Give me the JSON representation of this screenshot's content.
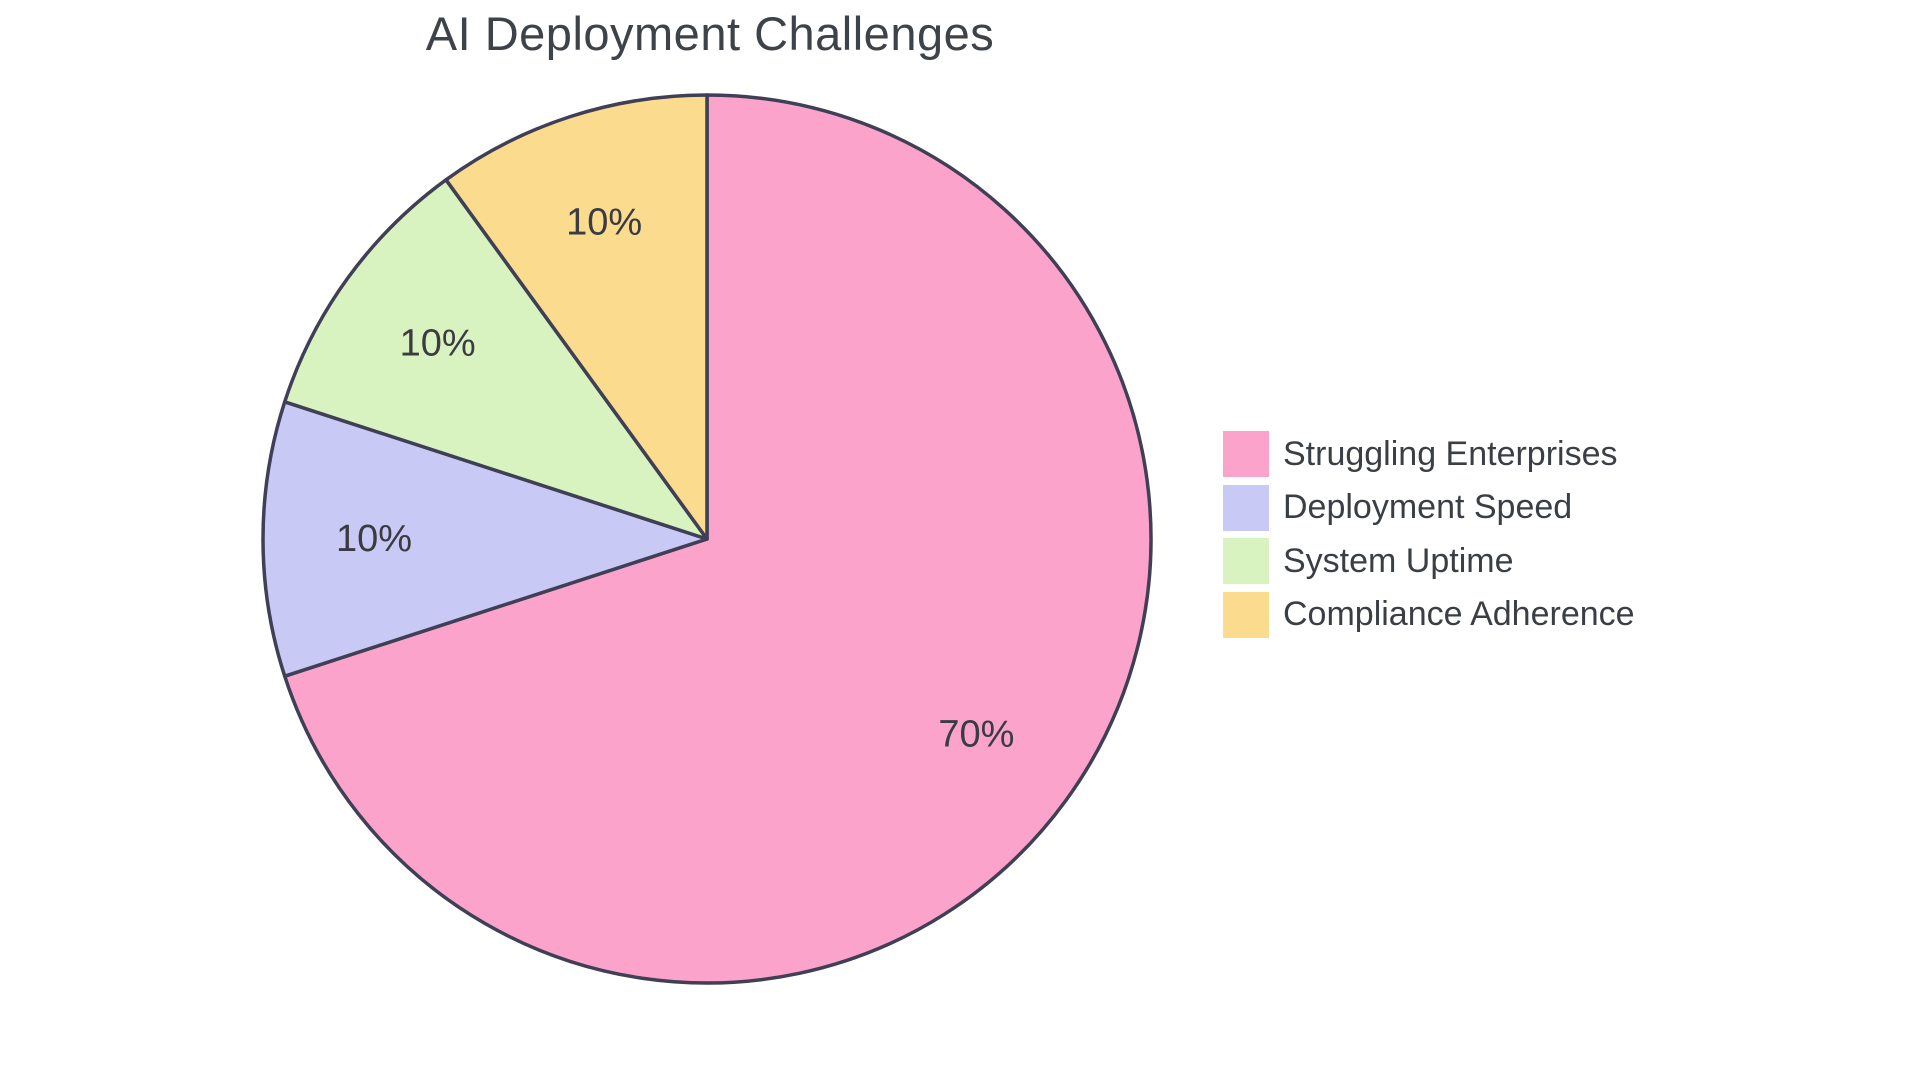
{
  "page": {
    "background": "#FFFFFF"
  },
  "chart_data": {
    "type": "pie",
    "title": "AI Deployment Challenges",
    "categories": [
      "Struggling Enterprises",
      "Deployment Speed",
      "System Uptime",
      "Compliance Adherence"
    ],
    "values": [
      70,
      10,
      10,
      10
    ],
    "slice_labels": [
      "70%",
      "10%",
      "10%",
      "10%"
    ],
    "colors": [
      "#FCA3CB",
      "#C9C9F5",
      "#D9F3C0",
      "#FBDB8E"
    ],
    "stroke_color": "#3F3F56",
    "label_color": "#3A3B43",
    "title_color": "#3E4249",
    "legend_text_color": "#3A3E45",
    "legend_position": "right",
    "start_angle": "top",
    "direction": "clockwise",
    "grid": false
  }
}
